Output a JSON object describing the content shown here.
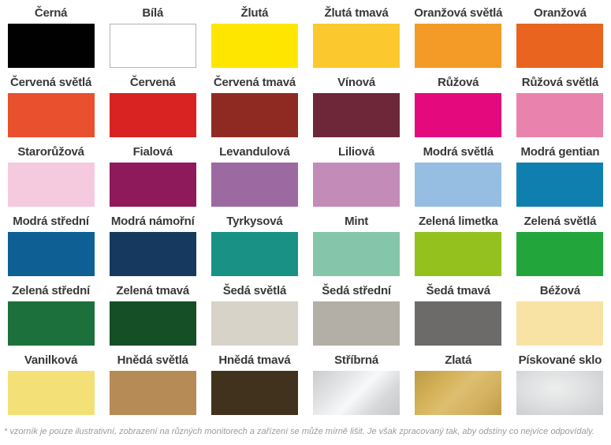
{
  "palette": {
    "columns": 6,
    "swatches": [
      {
        "label": "Černá",
        "color": "#010101"
      },
      {
        "label": "Bílá",
        "color": "#ffffff",
        "border": "#b5b5b5"
      },
      {
        "label": "Žlutá",
        "color": "#ffe600"
      },
      {
        "label": "Žlutá tmavá",
        "color": "#fbc92d"
      },
      {
        "label": "Oranžová světlá",
        "color": "#f39b26"
      },
      {
        "label": "Oranžová",
        "color": "#e8641f"
      },
      {
        "label": "Červená světlá",
        "color": "#e8502e"
      },
      {
        "label": "Červená",
        "color": "#d92323"
      },
      {
        "label": "Červená tmavá",
        "color": "#8f2a23"
      },
      {
        "label": "Vínová",
        "color": "#6e2639"
      },
      {
        "label": "Růžová",
        "color": "#e5097e"
      },
      {
        "label": "Růžová světlá",
        "color": "#e983ae"
      },
      {
        "label": "Starorůžová",
        "color": "#f5c9de"
      },
      {
        "label": "Fialová",
        "color": "#8e1a5c"
      },
      {
        "label": "Levandulová",
        "color": "#9c6aa0"
      },
      {
        "label": "Liliová",
        "color": "#c38cb8"
      },
      {
        "label": "Modrá světlá",
        "color": "#95bee2"
      },
      {
        "label": "Modrá gentian",
        "color": "#0f7fb0"
      },
      {
        "label": "Modrá střední",
        "color": "#0d5f94"
      },
      {
        "label": "Modrá námořní",
        "color": "#16395f"
      },
      {
        "label": "Tyrkysová",
        "color": "#199185"
      },
      {
        "label": "Mint",
        "color": "#85c6ab"
      },
      {
        "label": "Zelená limetka",
        "color": "#95c11f"
      },
      {
        "label": "Zelená světlá",
        "color": "#22a63c"
      },
      {
        "label": "Zelená střední",
        "color": "#1b703b"
      },
      {
        "label": "Zelená tmavá",
        "color": "#144f25"
      },
      {
        "label": "Šedá světlá",
        "color": "#d7d3c9"
      },
      {
        "label": "Šedá střední",
        "color": "#b3afa7"
      },
      {
        "label": "Šedá tmavá",
        "color": "#6c6b69"
      },
      {
        "label": "Béžová",
        "color": "#f8e3a5"
      },
      {
        "label": "Vanilková",
        "color": "#f3e178"
      },
      {
        "label": "Hnědá světlá",
        "color": "#b68b55"
      },
      {
        "label": "Hnědá tmavá",
        "color": "#40321d"
      },
      {
        "label": "Stříbrná",
        "color": "#d9dadc",
        "css": "linear-gradient(135deg, #c9cbcd 0%, #e3e4e6 30%, #f7f8f9 52%, #d6d8da 75%, #c6c8ca 100%)"
      },
      {
        "label": "Zlatá",
        "color": "#cfab52",
        "css": "linear-gradient(135deg, #bd9a45 0%, #d4b258 30%, #ddbf70 50%, #d2b05e 75%, #bf9c46 100%)"
      },
      {
        "label": "Pískované sklo",
        "color": "#d8d9db",
        "css": "radial-gradient(ellipse at 45% 40%, #edeeee 0%, #dfe0e1 45%, #d3d4d6 75%, #cccdd0 100%)"
      }
    ]
  },
  "footnote": "* vzorník je pouze ilustrativní, zobrazení na různých monitorech a zařízení se může mírně lišit. Je však zpracovaný tak, aby odstíny co nejvíce odpovídaly.",
  "chart_data": {
    "type": "table",
    "title": "Vzorník barev (color sample chart)",
    "columns": [
      "label",
      "color"
    ],
    "rows": [
      [
        "Černá",
        "#010101"
      ],
      [
        "Bílá",
        "#ffffff"
      ],
      [
        "Žlutá",
        "#ffe600"
      ],
      [
        "Žlutá tmavá",
        "#fbc92d"
      ],
      [
        "Oranžová světlá",
        "#f39b26"
      ],
      [
        "Oranžová",
        "#e8641f"
      ],
      [
        "Červená světlá",
        "#e8502e"
      ],
      [
        "Červená",
        "#d92323"
      ],
      [
        "Červená tmavá",
        "#8f2a23"
      ],
      [
        "Vínová",
        "#6e2639"
      ],
      [
        "Růžová",
        "#e5097e"
      ],
      [
        "Růžová světlá",
        "#e983ae"
      ],
      [
        "Starorůžová",
        "#f5c9de"
      ],
      [
        "Fialová",
        "#8e1a5c"
      ],
      [
        "Levandulová",
        "#9c6aa0"
      ],
      [
        "Liliová",
        "#c38cb8"
      ],
      [
        "Modrá světlá",
        "#95bee2"
      ],
      [
        "Modrá gentian",
        "#0f7fb0"
      ],
      [
        "Modrá střední",
        "#0d5f94"
      ],
      [
        "Modrá námořní",
        "#16395f"
      ],
      [
        "Tyrkysová",
        "#199185"
      ],
      [
        "Mint",
        "#85c6ab"
      ],
      [
        "Zelená limetka",
        "#95c11f"
      ],
      [
        "Zelená světlá",
        "#22a63c"
      ],
      [
        "Zelená střední",
        "#1b703b"
      ],
      [
        "Zelená tmavá",
        "#144f25"
      ],
      [
        "Šedá světlá",
        "#d7d3c9"
      ],
      [
        "Šedá střední",
        "#b3afa7"
      ],
      [
        "Šedá tmavá",
        "#6c6b69"
      ],
      [
        "Béžová",
        "#f8e3a5"
      ],
      [
        "Vanilková",
        "#f3e178"
      ],
      [
        "Hnědá světlá",
        "#b68b55"
      ],
      [
        "Hnědá tmavá",
        "#40321d"
      ],
      [
        "Stříbrná",
        "silver-gradient"
      ],
      [
        "Zlatá",
        "gold-gradient"
      ],
      [
        "Pískované sklo",
        "frosted-glass-gradient"
      ]
    ],
    "layout": {
      "grid": "6x6",
      "cell": "label above swatch"
    }
  }
}
